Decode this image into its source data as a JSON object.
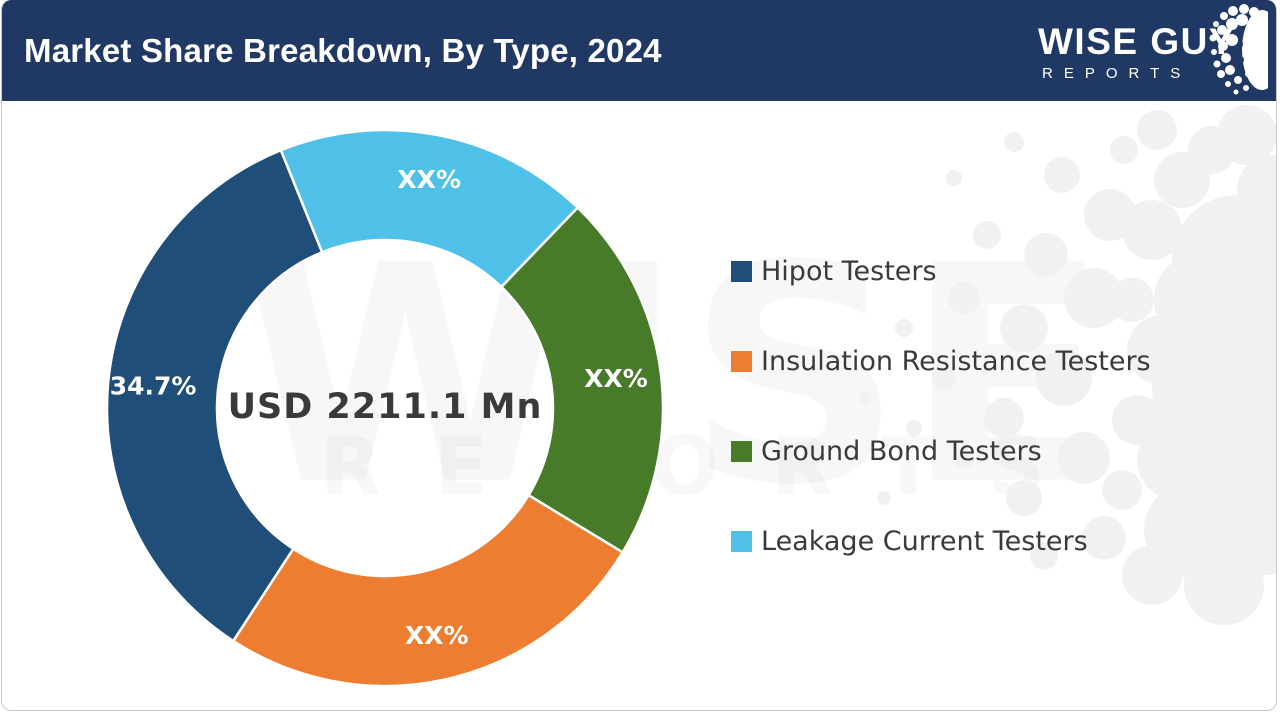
{
  "header": {
    "title": "Market Share Breakdown, By Type, 2024"
  },
  "logo": {
    "line1": "WISE GUY",
    "line2": "REPORTS"
  },
  "watermark": {
    "line1": "WISE GUY",
    "line2": "REPORTS"
  },
  "chart_data": {
    "type": "pie",
    "subtype": "donut",
    "title": "Market Share Breakdown, By Type, 2024",
    "center_label": "USD 2211.1 Mn",
    "start_angle_deg": -22,
    "legend_position": "right",
    "slices": [
      {
        "name": "Leakage Current Testers",
        "label": "XX%",
        "value_pct": 18.3,
        "color": "#4FC1E9"
      },
      {
        "name": "Ground Bond Testers",
        "label": "XX%",
        "value_pct": 21.5,
        "color": "#477A29"
      },
      {
        "name": "Insulation Resistance Testers",
        "label": "XX%",
        "value_pct": 25.5,
        "color": "#ED7D31"
      },
      {
        "name": "Hipot Testers",
        "label": "34.7%",
        "value_pct": 34.7,
        "color": "#1F4E79"
      }
    ]
  },
  "legend": {
    "items": [
      {
        "label": "Hipot Testers",
        "color": "#1F4E79"
      },
      {
        "label": "Insulation Resistance Testers",
        "color": "#ED7D31"
      },
      {
        "label": "Ground Bond Testers",
        "color": "#477A29"
      },
      {
        "label": "Leakage Current Testers",
        "color": "#4FC1E9"
      }
    ]
  },
  "colors": {
    "header_bg": "#203864",
    "slice_navy": "#1F4E79",
    "slice_orange": "#ED7D31",
    "slice_green": "#477A29",
    "slice_lightblue": "#4FC1E9",
    "text_dark": "#3A3A3A",
    "card_border": "#C9C9C9"
  }
}
